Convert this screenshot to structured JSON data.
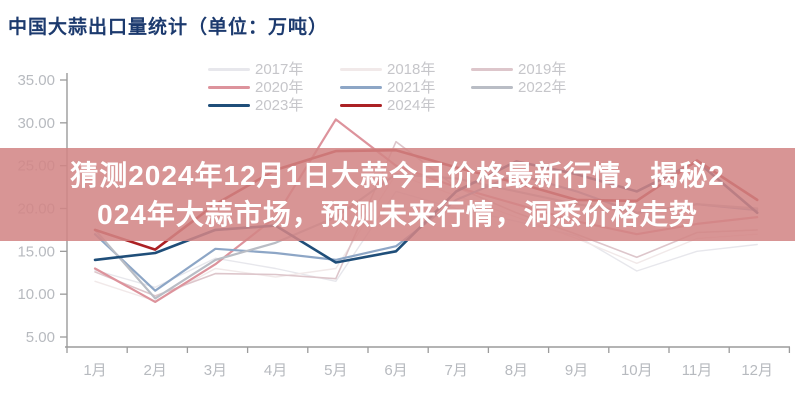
{
  "banner": {
    "line1": "猜测2024年12月1日大蒜今日价格最新行情，揭秘2",
    "line2": "024年大蒜市场，预测未来行情，洞悉价格走势"
  },
  "chart_data": {
    "type": "line",
    "title": "中国大蒜出口量统计（单位：万吨）",
    "xlabel": "",
    "ylabel": "",
    "ylim": [
      5,
      35
    ],
    "y_tick_labels": [
      "35.00",
      "30.00",
      "25.00",
      "20.00",
      "15.00",
      "10.00",
      "5.00"
    ],
    "categories": [
      "1月",
      "2月",
      "3月",
      "4月",
      "5月",
      "6月",
      "7月",
      "8月",
      "9月",
      "10月",
      "11月",
      "12月"
    ],
    "legend_position": "top",
    "grid": false,
    "axis_color": "#9b9b9b",
    "tick_label_color": "#b7babf",
    "legend_text_color": "#c6c6ca",
    "series": [
      {
        "name": "2017年",
        "color": "#e7e7ec",
        "width": 1.4,
        "values": [
          12.8,
          10.8,
          14.2,
          13.0,
          11.5,
          22.0,
          20.0,
          18.5,
          16.8,
          12.7,
          15.0,
          15.8
        ]
      },
      {
        "name": "2018年",
        "color": "#f1e9e9",
        "width": 1.4,
        "values": [
          11.5,
          9.2,
          13.0,
          12.0,
          13.0,
          24.0,
          21.5,
          19.0,
          16.5,
          13.6,
          16.5,
          17.0
        ]
      },
      {
        "name": "2019年",
        "color": "#ddc6cb",
        "width": 1.6,
        "values": [
          12.6,
          9.8,
          12.4,
          12.3,
          11.8,
          27.8,
          22.5,
          19.5,
          17.0,
          14.3,
          17.2,
          17.5
        ]
      },
      {
        "name": "2020年",
        "color": "#dd939c",
        "width": 2.2,
        "values": [
          13.0,
          9.1,
          13.5,
          19.0,
          30.4,
          25.0,
          22.5,
          20.5,
          18.5,
          17.0,
          18.2,
          19.0
        ]
      },
      {
        "name": "2021年",
        "color": "#8da6c6",
        "width": 2.2,
        "values": [
          17.0,
          10.4,
          15.3,
          14.8,
          14.0,
          15.6,
          21.0,
          24.0,
          22.0,
          19.5,
          20.5,
          19.8
        ]
      },
      {
        "name": "2022年",
        "color": "#b9bdc5",
        "width": 2.2,
        "values": [
          17.5,
          9.5,
          14.0,
          16.0,
          19.0,
          24.0,
          23.5,
          22.0,
          20.5,
          19.5,
          20.5,
          20.0
        ]
      },
      {
        "name": "2023年",
        "color": "#1f4e79",
        "width": 2.6,
        "values": [
          14.0,
          14.8,
          17.5,
          18.0,
          13.7,
          15.0,
          22.0,
          25.5,
          24.0,
          22.0,
          25.5,
          19.5
        ]
      },
      {
        "name": "2024年",
        "color": "#ab2124",
        "width": 2.6,
        "values": [
          17.5,
          15.2,
          20.5,
          24.5,
          26.7,
          26.8,
          24.8,
          23.0,
          21.0,
          20.9,
          25.6,
          21.0
        ]
      }
    ]
  }
}
